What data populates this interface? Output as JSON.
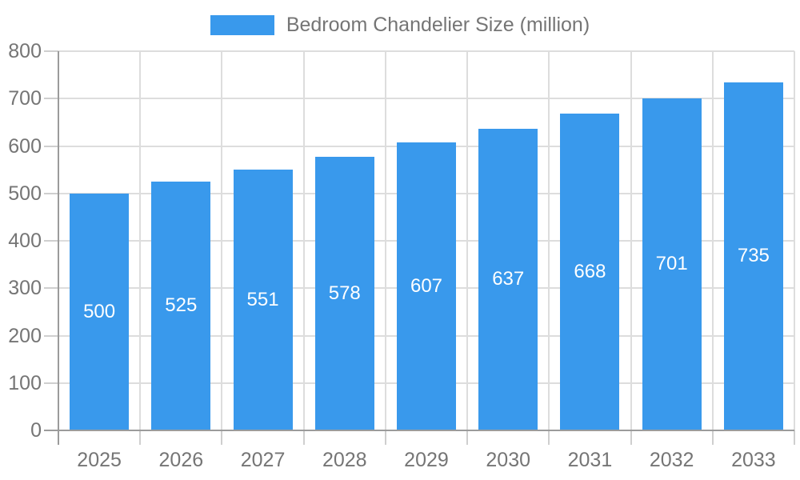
{
  "chart_data": {
    "type": "bar",
    "title": "Bedroom Chandelier Size (million)",
    "categories": [
      "2025",
      "2026",
      "2027",
      "2028",
      "2029",
      "2030",
      "2031",
      "2032",
      "2033"
    ],
    "values": [
      500,
      525,
      551,
      578,
      607,
      637,
      668,
      701,
      735
    ],
    "xlabel": "",
    "ylabel": "",
    "ylim": [
      0,
      800
    ],
    "ytick_step": 100,
    "grid": true,
    "legend_position": "top-center",
    "value_label_position": "inside-middle",
    "colors": {
      "bar": "#3999EC",
      "text": "#757575",
      "value_label": "#FFFFFF",
      "grid": "#DDDDDD",
      "tick": "#CFCFCF",
      "axis": "#9B9B9B",
      "background": "#FFFFFF"
    }
  }
}
